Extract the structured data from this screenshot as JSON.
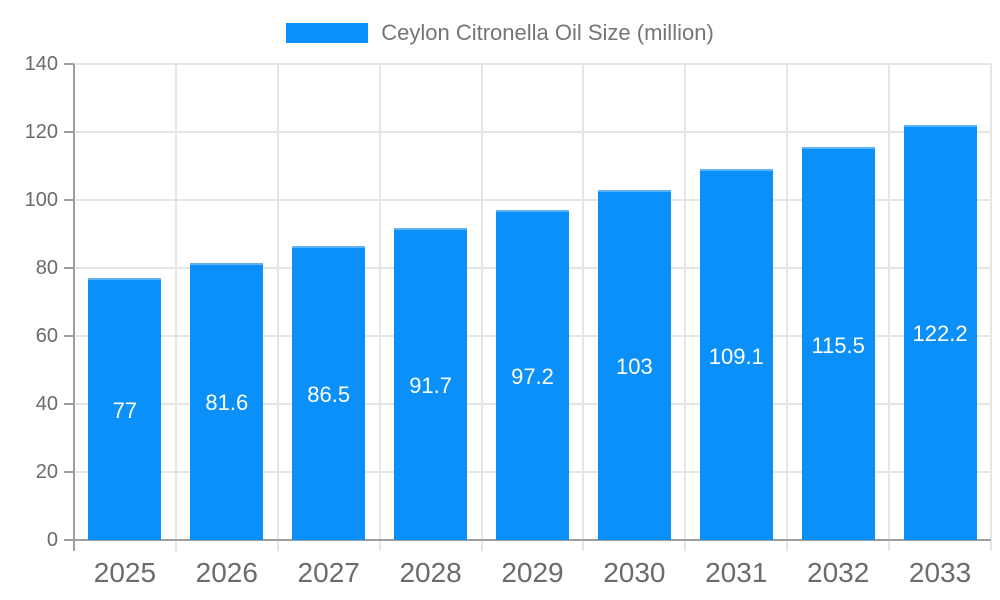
{
  "chart_data": {
    "type": "bar",
    "title": "Ceylon Citronella Oil Size (million)",
    "categories": [
      "2025",
      "2026",
      "2027",
      "2028",
      "2029",
      "2030",
      "2031",
      "2032",
      "2033"
    ],
    "values": [
      77,
      81.6,
      86.5,
      91.7,
      97.2,
      103,
      109.1,
      115.5,
      122.2
    ],
    "series_name": "Ceylon Citronella Oil Size (million)",
    "xlabel": "",
    "ylabel": "",
    "ylim": [
      0,
      140
    ],
    "yticks": [
      0,
      20,
      40,
      60,
      80,
      100,
      120,
      140
    ],
    "grid": true,
    "legend_position": "top",
    "value_labels": "centered-in-bar",
    "colors": {
      "bar": "#0a90f8",
      "bar_top_edge": "#5eb2f7",
      "grid": "#e5e5e5",
      "axis": "#9e9e9e",
      "tick_label": "#6b6b6b",
      "legend_text": "#757575",
      "value_label": "#ffffff",
      "background": "#ffffff"
    }
  }
}
